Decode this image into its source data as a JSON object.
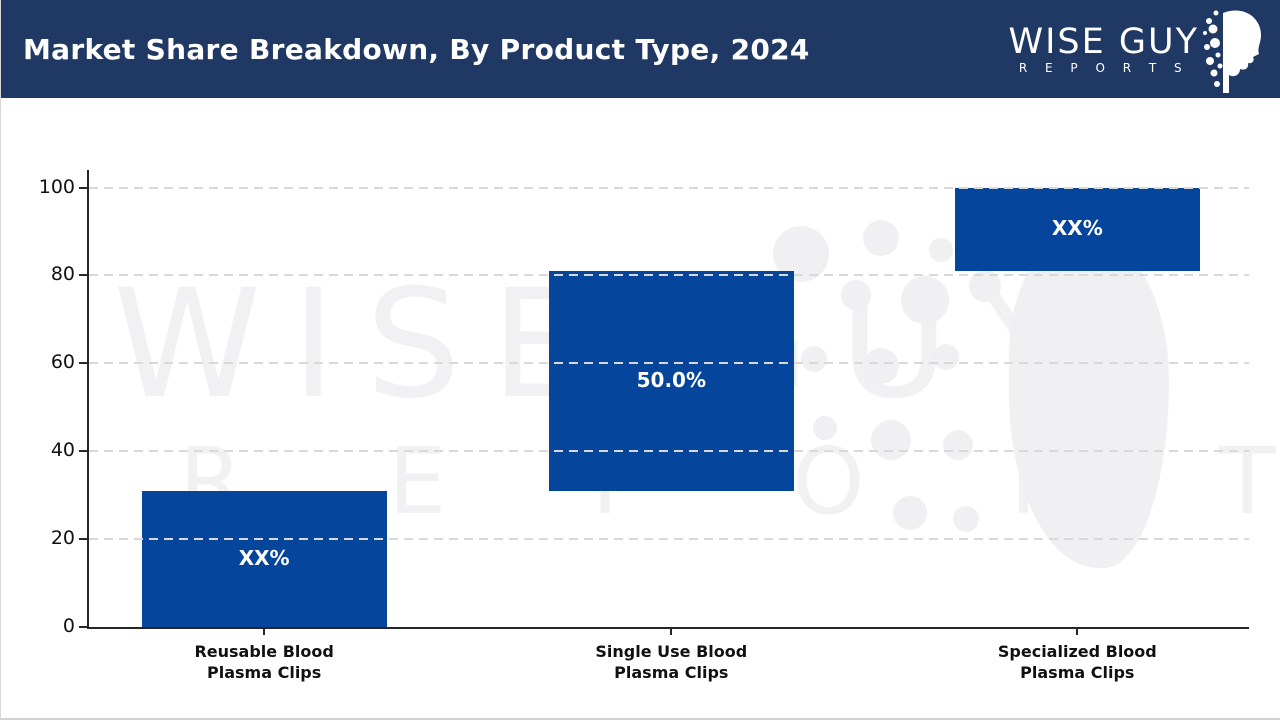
{
  "header": {
    "title": "Market Share Breakdown, By Product Type, 2024",
    "logo": {
      "name_line": "WISE GUY",
      "reports_line": "R E P O R T S"
    }
  },
  "watermark": {
    "name_line": "WISE GUY",
    "reports_line": "R E P O R T S"
  },
  "chart_data": {
    "type": "bar",
    "variant": "floating-segment-bars (stacked waterfall of market share)",
    "title": "Market Share Breakdown, By Product Type, 2024",
    "categories": [
      [
        "Reusable Blood",
        "Plasma Clips"
      ],
      [
        "Single Use Blood",
        "Plasma Clips"
      ],
      [
        "Specialized Blood",
        "Plasma Clips"
      ]
    ],
    "bars": [
      {
        "label": "XX%",
        "start": 0,
        "end": 31,
        "value_shown": "XX%"
      },
      {
        "label": "50.0%",
        "start": 31,
        "end": 81,
        "value_shown": "50.0%"
      },
      {
        "label": "XX%",
        "start": 81,
        "end": 100,
        "value_shown": "XX%"
      }
    ],
    "y_ticks": [
      0,
      20,
      40,
      60,
      80,
      100
    ],
    "ylim": [
      0,
      104
    ],
    "xlabel": "",
    "ylabel": "",
    "legend": "none",
    "grid": {
      "horizontal": true,
      "style": "dashed",
      "color": "#d9d9d9",
      "drawn_over_bars": true
    },
    "bar_color": "#05459c"
  },
  "colors": {
    "header_bg": "#1f3864",
    "bar": "#05459c",
    "axis": "#262626",
    "grid": "#d9d9d9",
    "text": "#111111",
    "watermark": "#f0f0f3"
  }
}
